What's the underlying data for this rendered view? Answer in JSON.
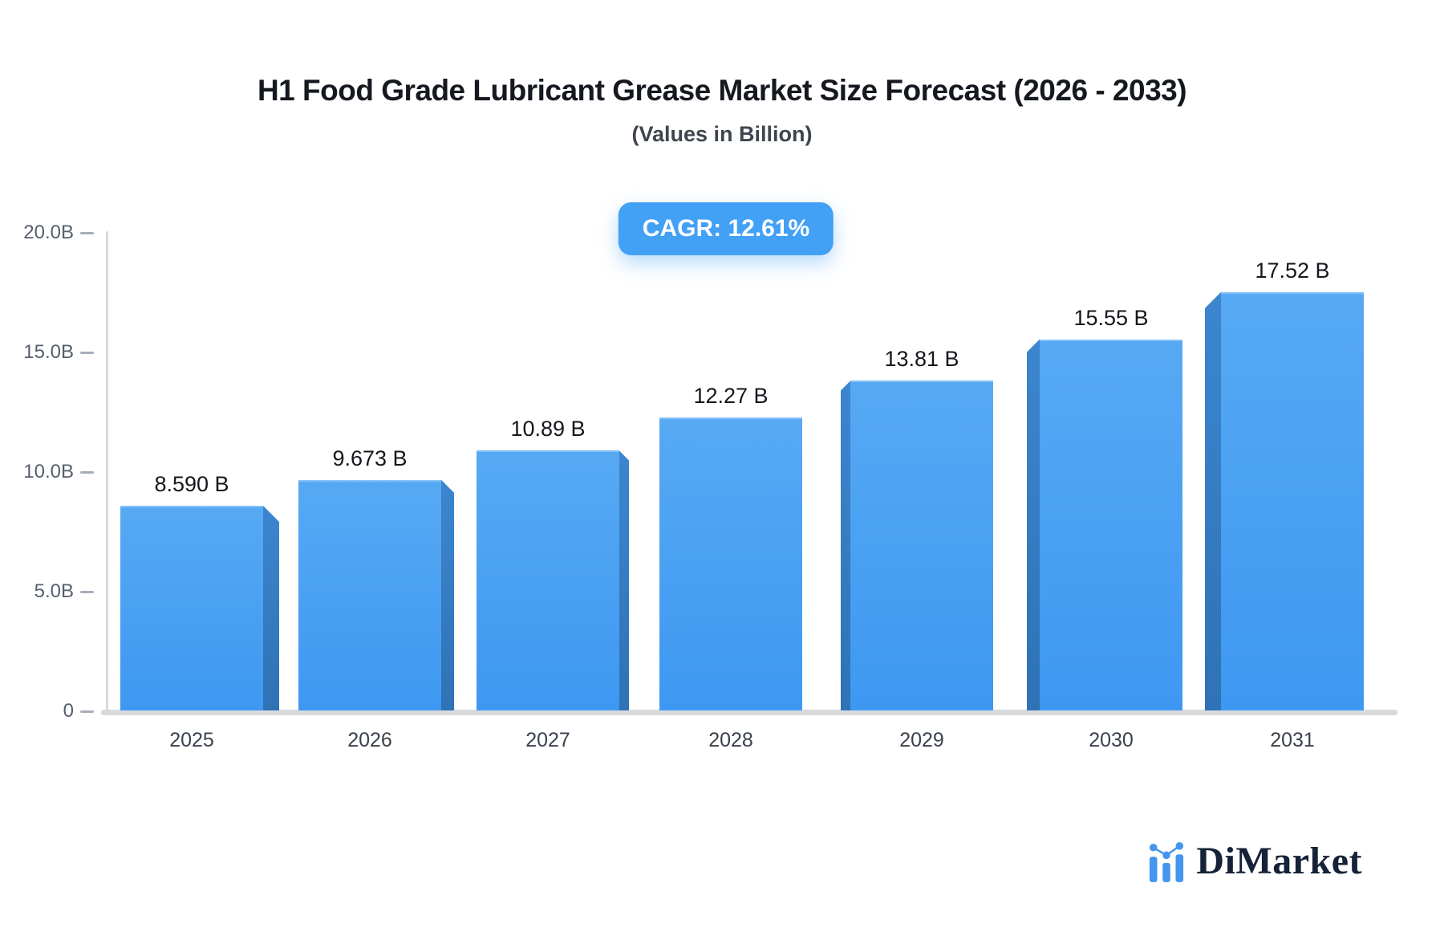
{
  "header": {
    "title": "H1 Food Grade Lubricant Grease Market Size Forecast (2026 - 2033)",
    "subtitle": "(Values in Billion)"
  },
  "badge": {
    "label": "CAGR: 12.61%"
  },
  "chart_data": {
    "type": "bar",
    "title": "H1 Food Grade Lubricant Grease Market Size Forecast (2026 - 2033)",
    "subtitle": "(Values in Billion)",
    "cagr_percent": 12.61,
    "categories": [
      "2025",
      "2026",
      "2027",
      "2028",
      "2029",
      "2030",
      "2031"
    ],
    "values": [
      8.59,
      9.673,
      10.89,
      12.27,
      13.81,
      15.55,
      17.52
    ],
    "value_labels": [
      "8.590 B",
      "9.673 B",
      "10.89 B",
      "12.27 B",
      "13.81 B",
      "15.55 B",
      "17.52 B"
    ],
    "xlabel": "",
    "ylabel": "",
    "ylim": [
      0,
      20
    ],
    "yticks": [
      {
        "value": 0,
        "label": "0"
      },
      {
        "value": 5,
        "label": "5.0B"
      },
      {
        "value": 10,
        "label": "10.0B"
      },
      {
        "value": 15,
        "label": "15.0B"
      },
      {
        "value": 20,
        "label": "20.0B"
      }
    ],
    "grid": false,
    "legend": false,
    "bar_style": "3d-perspective"
  },
  "logo": {
    "name": "DiMarket",
    "icon": "bar-chart-logo-icon"
  },
  "colors": {
    "accent": "#42a0f5",
    "bar_top": "#57a9f3",
    "bar_bottom": "#3e98f2",
    "bar_side_top": "#3c86cf",
    "bar_side_bottom": "#2f72b5",
    "axis": "#d8dade",
    "tick": "#a7adb8",
    "logo_text": "#152238",
    "logo_icon": "#4496ef"
  }
}
